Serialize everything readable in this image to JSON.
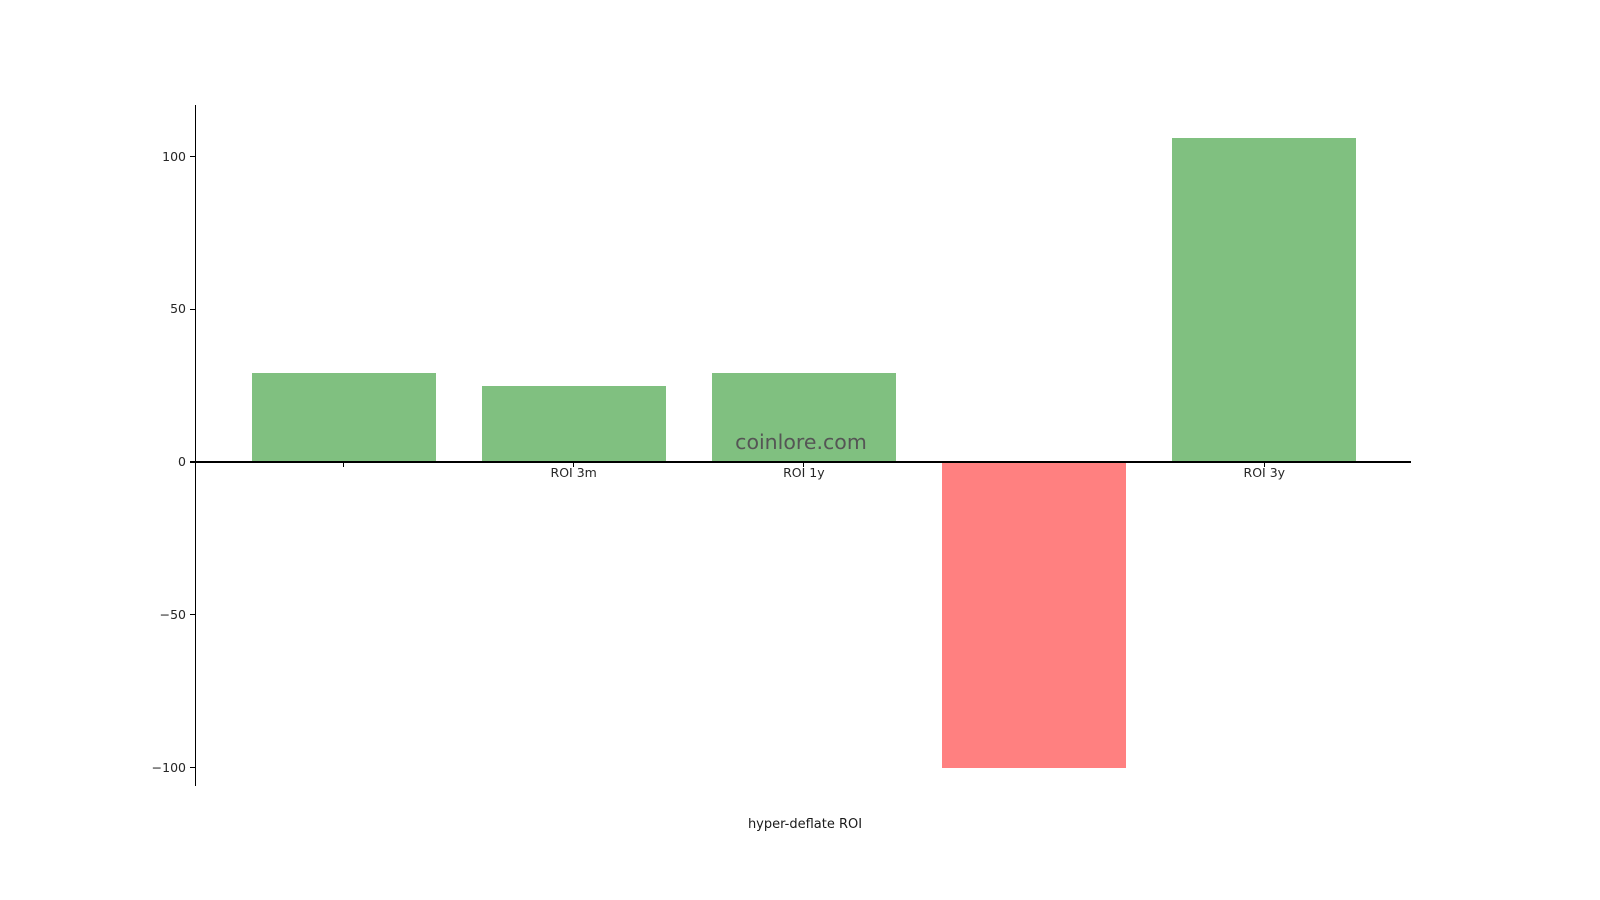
{
  "chart_data": {
    "type": "bar",
    "title": "hyper-deflate ROI",
    "title_position": "bottom-center",
    "watermark": "coinlore.com",
    "categories": [
      "",
      "ROI 3m",
      "ROI 1y",
      "",
      "ROI 3y"
    ],
    "values": [
      29,
      25,
      29,
      -100,
      106
    ],
    "bar_colors": [
      "#80c080",
      "#80c080",
      "#80c080",
      "#ff8080",
      "#80c080"
    ],
    "positive_color": "#80c080",
    "negative_color": "#ff8080",
    "yticks": [
      100,
      50,
      0,
      -50,
      -100
    ],
    "ytick_labels": [
      "100",
      "50",
      "0",
      "−50",
      "−100"
    ],
    "ylim": [
      -106,
      117
    ],
    "xlabel": "",
    "ylabel": "",
    "grid": false,
    "legend": false,
    "axis_color": "#000000",
    "tick_label_color": "#262626",
    "title_color": "#1a1a1a",
    "watermark_color": "#555555",
    "notes": "first and fourth x tick labels are not legible in the rendered pixels; fourth is covered by the negative red bar"
  }
}
